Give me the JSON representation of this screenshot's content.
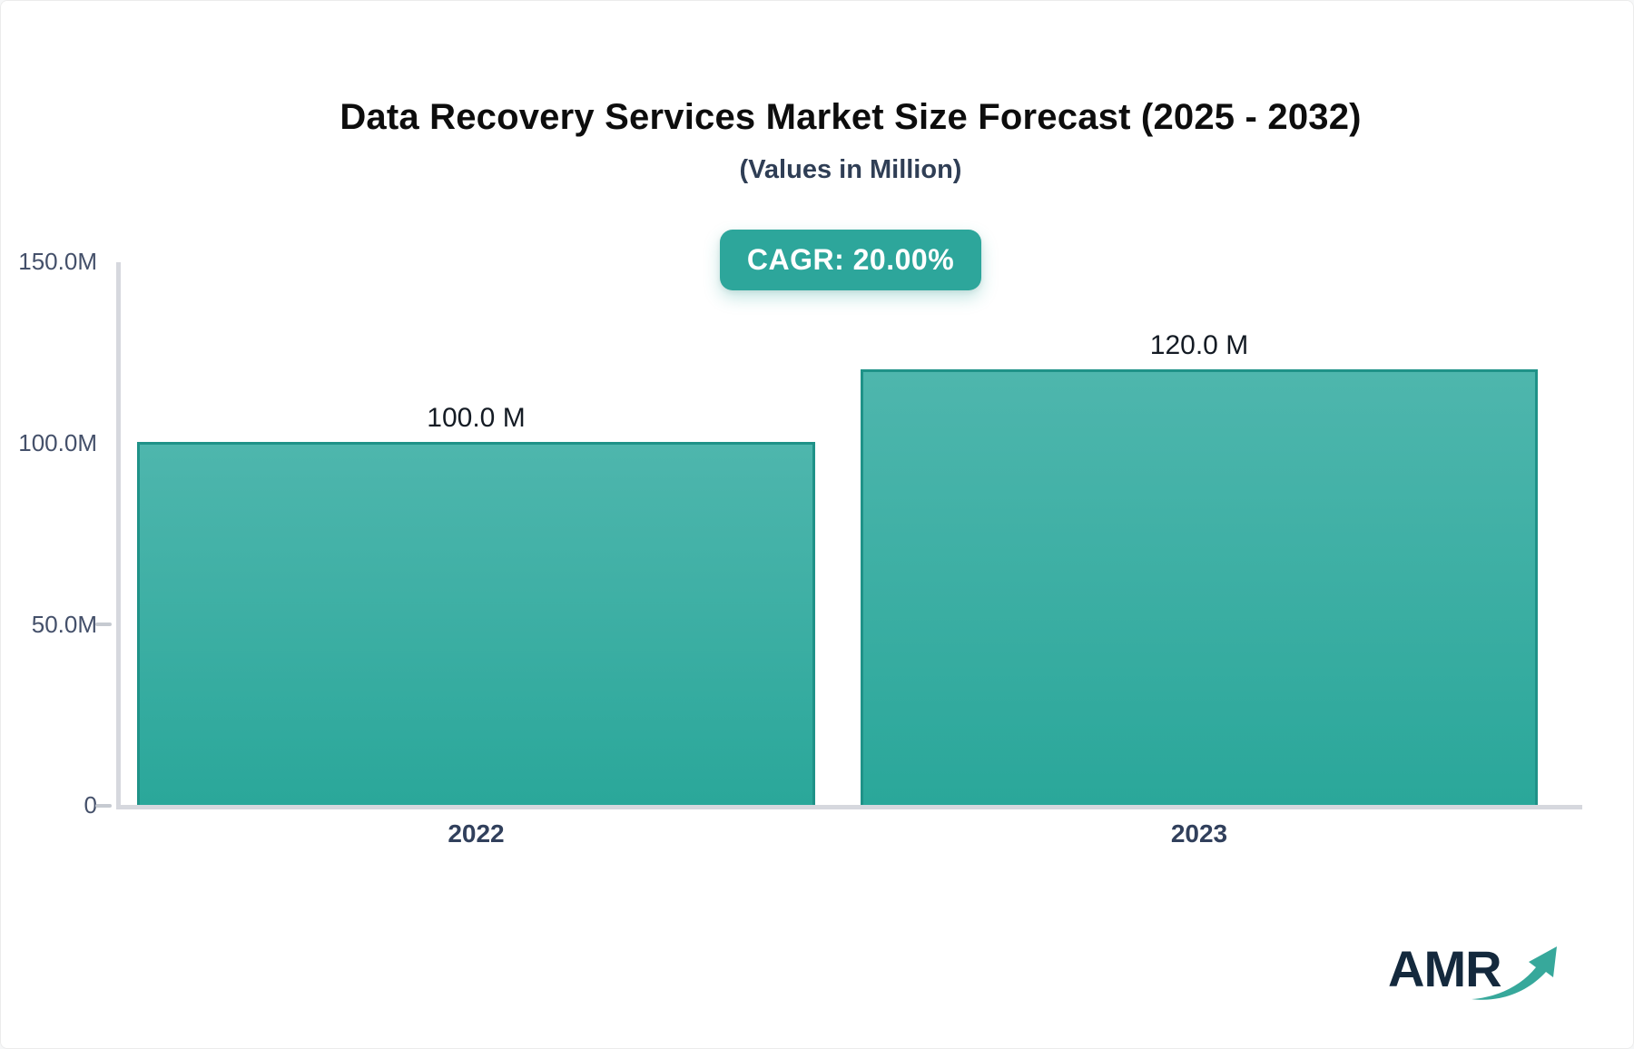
{
  "header": {
    "cagr_badge": "CAGR: 20.00%"
  },
  "chart_data": {
    "type": "bar",
    "title": "Data Recovery Services Market Size Forecast (2025 - 2032)",
    "subtitle": "(Values in Million)",
    "categories": [
      "2022",
      "2023"
    ],
    "values": [
      100.0,
      120.0
    ],
    "value_labels": [
      "100.0 M",
      "120.0 M"
    ],
    "unit": "Million",
    "ylim": [
      0,
      150
    ],
    "ytick_labels": [
      "150.0M",
      "100.0M",
      "50.0M",
      "0"
    ],
    "xlabel": "",
    "ylabel": "",
    "grid": false,
    "legend": "none"
  },
  "colors": {
    "title_text": "#0D0D0D",
    "subtitle_text": "#2F3E55",
    "badge_bg": "#2DA69B",
    "badge_text": "#FFFFFF",
    "bar_top": "#4EB6AD",
    "bar_bottom": "#2AA79A",
    "bar_border": "#1F9288",
    "axis": "#D6D8DE",
    "tick": "#C6CAD1",
    "axis_label": "#44506A",
    "category_label": "#31405C",
    "value_label": "#141B24",
    "logo_text": "#14293D",
    "logo_arrow": "#37A89B"
  },
  "logo": {
    "text": "AMR",
    "arrow_icon": "growth-arrow"
  }
}
